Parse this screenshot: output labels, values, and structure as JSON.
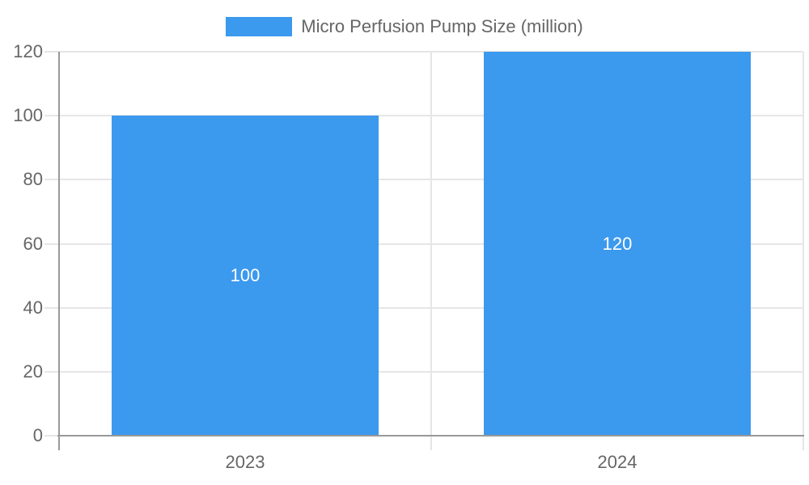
{
  "legend": {
    "label": "Micro Perfusion Pump Size (million)",
    "swatch_color": "#3B99EE",
    "position": "top"
  },
  "chart_data": {
    "type": "bar",
    "title": "",
    "categories": [
      "2023",
      "2024"
    ],
    "series": [
      {
        "name": "Micro Perfusion Pump Size (million)",
        "values": [
          100,
          120
        ]
      }
    ],
    "data_labels": [
      "100",
      "120"
    ],
    "xlabel": "",
    "ylabel": "",
    "ylim": [
      0,
      120
    ],
    "yticks": [
      0,
      20,
      40,
      60,
      80,
      100,
      120
    ],
    "grid": true,
    "legend_position": "top",
    "colors": {
      "bar": "#3B99EE",
      "grid_line": "#E6E6E6",
      "axis_line": "#999999",
      "tick_label": "#666666",
      "data_label": "#FFFFFF",
      "background": "#FFFFFF"
    }
  }
}
